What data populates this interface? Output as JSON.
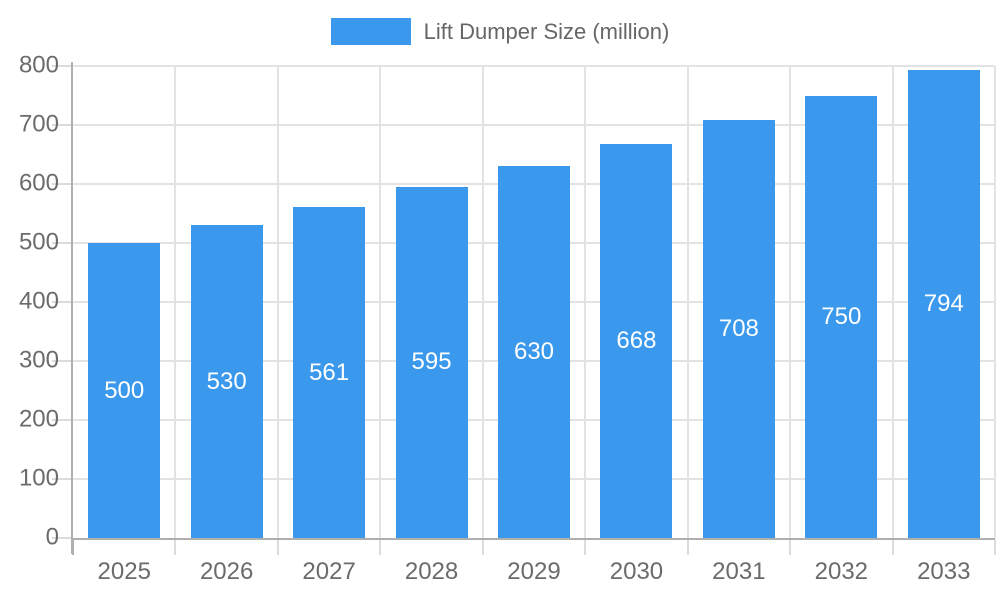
{
  "chart_data": {
    "type": "bar",
    "title": "",
    "legend": "Lift Dumper Size (million)",
    "legend_position": "top",
    "categories": [
      "2025",
      "2026",
      "2027",
      "2028",
      "2029",
      "2030",
      "2031",
      "2032",
      "2033"
    ],
    "series": [
      {
        "name": "Lift Dumper Size (million)",
        "values": [
          500,
          530,
          561,
          595,
          630,
          668,
          708,
          750,
          794
        ]
      }
    ],
    "xlabel": "",
    "ylabel": "",
    "ylim": [
      0,
      800
    ],
    "yticks": [
      0,
      100,
      200,
      300,
      400,
      500,
      600,
      700,
      800
    ],
    "grid": true,
    "value_labels": "inside-center",
    "colors": {
      "bar": "#3B99ED",
      "grid": "#E3E3E3",
      "axis": "#AFAFAF",
      "tick": "#DCDCDC",
      "axis_text": "#6B6B6B",
      "legend_text": "#666666",
      "value_label_text": "#FFFFFF",
      "background": "#FFFFFF"
    }
  }
}
